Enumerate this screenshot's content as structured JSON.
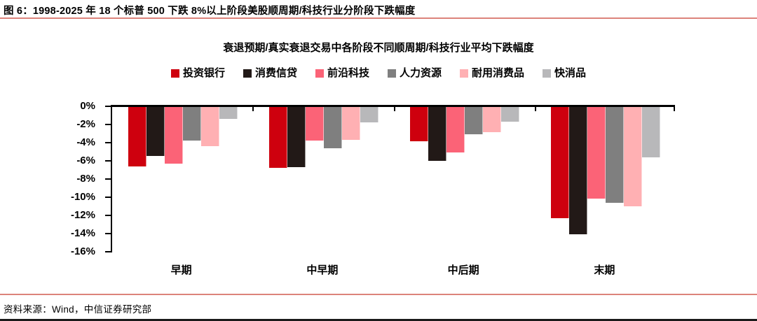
{
  "header": {
    "title": "图 6：1998-2025 年 18 个标普 500 下跌 8%以上阶段美股顺周期/科技行业分阶段下跌幅度"
  },
  "footer": {
    "source": "资料来源：Wind，中信证券研究部"
  },
  "colors": {
    "divider_red": "#DC837B",
    "bottom_bar": "#1A1A1A",
    "axis": "#000000"
  },
  "chart_data": {
    "type": "bar",
    "title": "衰退预期/真实衰退交易中各阶段不同顺周期/科技行业平均下跌幅度",
    "categories": [
      "早期",
      "中早期",
      "中后期",
      "末期"
    ],
    "series": [
      {
        "name": "投资银行",
        "color": "#CE000E",
        "values": [
          -6.5,
          -6.7,
          -3.8,
          -12.2
        ]
      },
      {
        "name": "消费信贷",
        "color": "#221917",
        "values": [
          -5.4,
          -6.6,
          -5.9,
          -14.0
        ]
      },
      {
        "name": "前沿科技",
        "color": "#FB6377",
        "values": [
          -6.2,
          -3.7,
          -5.0,
          -10.1
        ]
      },
      {
        "name": "人力资源",
        "color": "#7F7F7F",
        "values": [
          -3.7,
          -4.5,
          -3.0,
          -10.5
        ]
      },
      {
        "name": "耐用消费品",
        "color": "#FFB0B3",
        "values": [
          -4.3,
          -3.6,
          -2.8,
          -10.9
        ]
      },
      {
        "name": "快消品",
        "color": "#B8B8BA",
        "values": [
          -1.3,
          -1.7,
          -1.6,
          -5.5
        ]
      }
    ],
    "ylabel": "",
    "xlabel": "",
    "ylim": [
      -16,
      0
    ],
    "ytick_step": 2,
    "ytick_labels": [
      "0%",
      "-2%",
      "-4%",
      "-6%",
      "-8%",
      "-10%",
      "-12%",
      "-14%",
      "-16%"
    ],
    "legend_position": "top",
    "grid": false
  }
}
